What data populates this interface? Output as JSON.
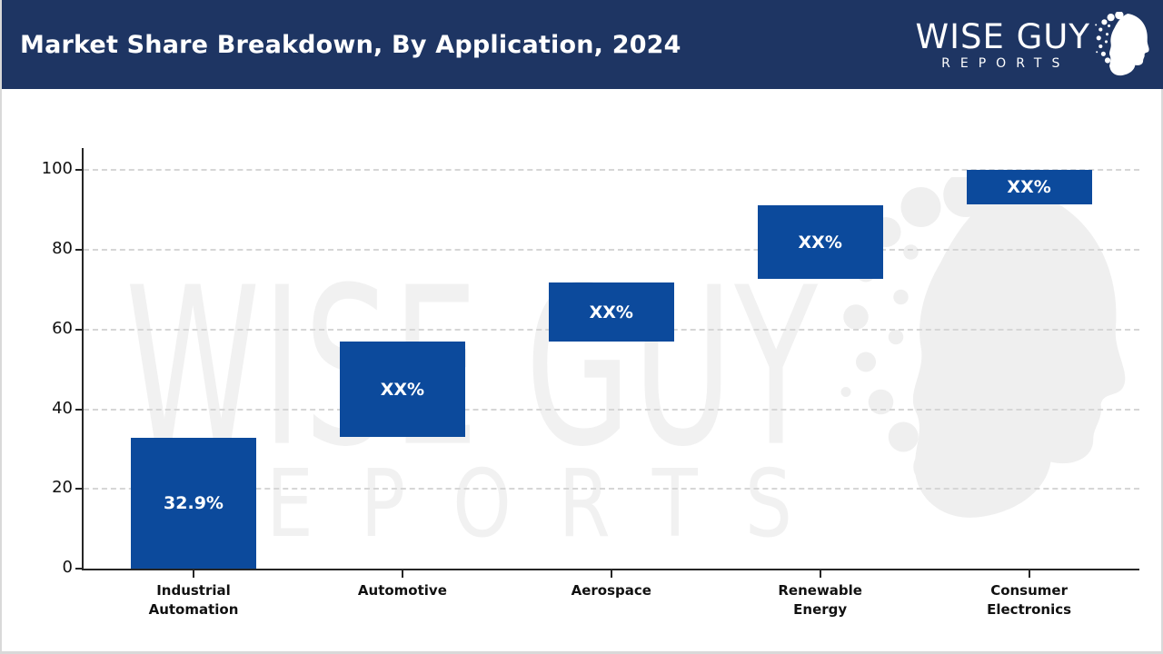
{
  "header": {
    "title": "Market Share Breakdown, By Application, 2024",
    "logo": {
      "line1": "WISE GUY",
      "line2": "REPORTS"
    }
  },
  "watermark": {
    "line1": "WISE GUY",
    "line2": "REPORTS"
  },
  "colors": {
    "header_bg": "#1e3563",
    "bar": "#0c4a9c",
    "grid": "#d6d6d6",
    "axis": "#262626",
    "watermark": "#f1f1f1",
    "value_label": "#ffffff"
  },
  "chart_data": {
    "type": "bar",
    "subtype": "waterfall",
    "title": "Market Share Breakdown, By Application, 2024",
    "xlabel": "",
    "ylabel": "",
    "ylim": [
      0,
      100
    ],
    "yticks": [
      0,
      20,
      40,
      60,
      80,
      100
    ],
    "grid": "horizontal-dashed",
    "legend": "none",
    "categories": [
      "Industrial Automation",
      "Automotive",
      "Aerospace",
      "Renewable Energy",
      "Consumer Electronics"
    ],
    "segments": [
      {
        "category": "Industrial Automation",
        "start": 0,
        "end": 32.9,
        "label": "32.9%"
      },
      {
        "category": "Automotive",
        "start": 33,
        "end": 57,
        "label": "XX%"
      },
      {
        "category": "Aerospace",
        "start": 57,
        "end": 71.8,
        "label": "XX%"
      },
      {
        "category": "Renewable Energy",
        "start": 72.7,
        "end": 91.2,
        "label": "XX%"
      },
      {
        "category": "Consumer Electronics",
        "start": 91.4,
        "end": 100,
        "label": "XX%"
      }
    ]
  }
}
